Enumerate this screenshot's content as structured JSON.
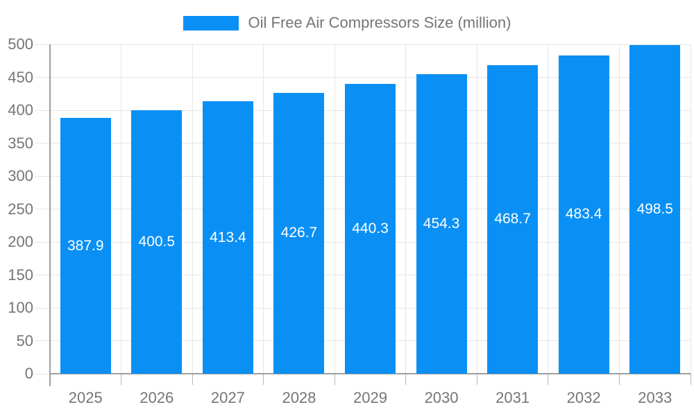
{
  "legend": {
    "items": [
      {
        "label": "Oil Free Air Compressors Size (million)",
        "color": "#0a90f5"
      }
    ]
  },
  "chart_data": {
    "type": "bar",
    "title": "Oil Free Air Compressors Size (million)",
    "categories": [
      "2025",
      "2026",
      "2027",
      "2028",
      "2029",
      "2030",
      "2031",
      "2032",
      "2033"
    ],
    "values": [
      387.9,
      400.5,
      413.4,
      426.7,
      440.3,
      454.3,
      468.7,
      483.4,
      498.5
    ],
    "data_labels": [
      "387.9",
      "400.5",
      "413.4",
      "426.7",
      "440.3",
      "454.3",
      "468.7",
      "483.4",
      "498.5"
    ],
    "xlabel": "",
    "ylabel": "",
    "ylim": [
      0,
      500
    ],
    "ytick_step": 50,
    "ytick_labels": [
      "0",
      "50",
      "100",
      "150",
      "200",
      "250",
      "300",
      "350",
      "400",
      "450",
      "500"
    ],
    "grid": true,
    "legend_position": "top",
    "colors": {
      "bar": "#0a90f5",
      "data_label": "#ffffff",
      "axis_text": "#757575",
      "grid_line": "#e6e6e6",
      "axis_line": "#9e9e9e",
      "tick": "#b5b5b5",
      "background": "#ffffff"
    }
  }
}
